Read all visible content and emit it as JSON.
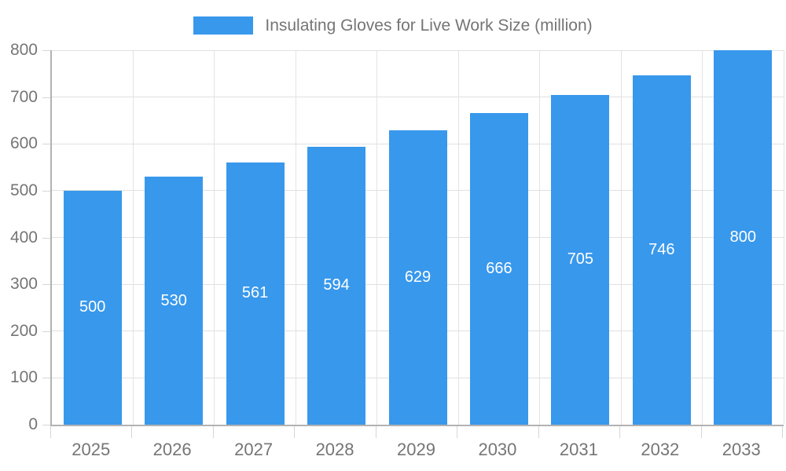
{
  "chart_data": {
    "type": "bar",
    "title": "Insulating Gloves for Live Work Size (million)",
    "categories": [
      "2025",
      "2026",
      "2027",
      "2028",
      "2029",
      "2030",
      "2031",
      "2032",
      "2033"
    ],
    "values": [
      500,
      530,
      561,
      594,
      629,
      666,
      705,
      746,
      800
    ],
    "xlabel": "",
    "ylabel": "",
    "ylim": [
      0,
      800
    ],
    "ytick_step": 100,
    "grid": true,
    "legend_position": "top",
    "colors": {
      "bar": "#3898EC",
      "bar_value_text": "#ffffff",
      "axis_text": "#757575",
      "axis_line": "#b2b2b2",
      "gridline": "#e0e0e0"
    }
  },
  "legend": {
    "label": "Insulating Gloves for Live Work Size (million)"
  }
}
